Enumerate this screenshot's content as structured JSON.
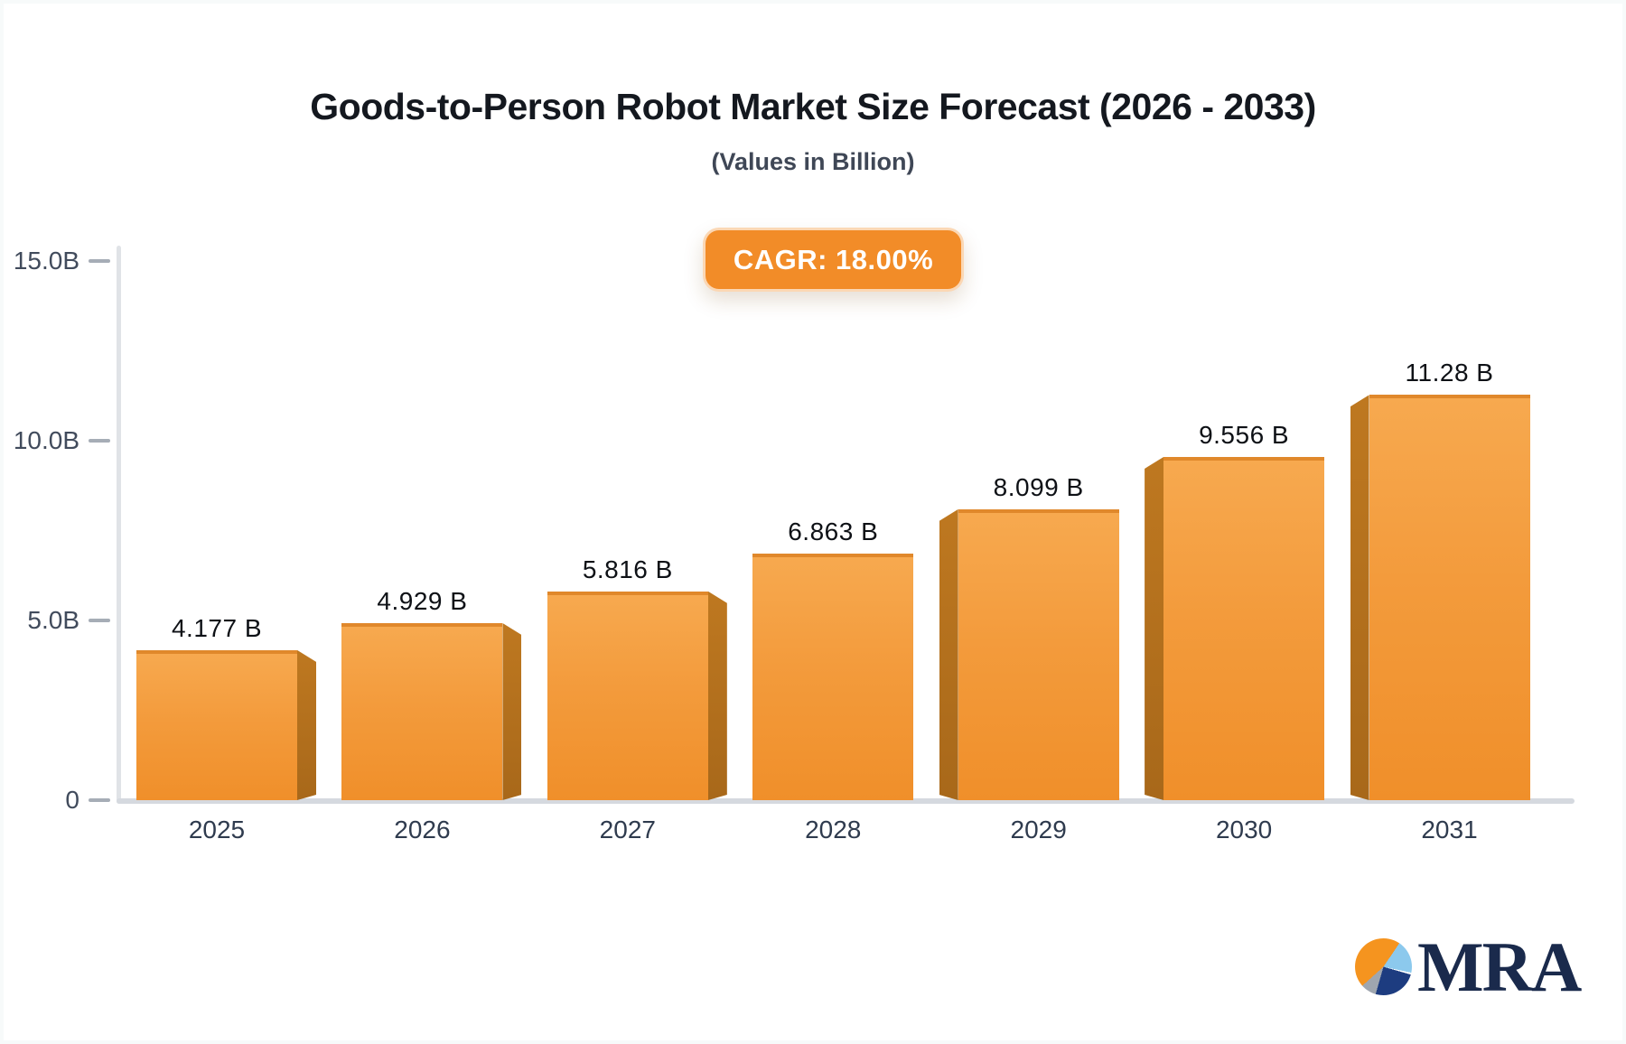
{
  "page": {
    "title": "Goods-to-Person Robot Market Size Forecast (2026 - 2033)",
    "subtitle": "(Values in Billion)",
    "cagr_badge_label": "CAGR: 18.00%"
  },
  "chart_data": {
    "type": "bar",
    "title": "Goods-to-Person Robot Market Size Forecast (2026 - 2033)",
    "subtitle": "(Values in Billion)",
    "cagr_percent": "18.00%",
    "categories": [
      "2025",
      "2026",
      "2027",
      "2028",
      "2029",
      "2030",
      "2031"
    ],
    "values": [
      4.177,
      4.929,
      5.816,
      6.863,
      8.099,
      9.556,
      11.28
    ],
    "value_labels": [
      "4.177 B",
      "4.929 B",
      "5.816 B",
      "6.863 B",
      "8.099 B",
      "9.556 B",
      "11.28 B"
    ],
    "unit": "Billion",
    "ylim": [
      0,
      15
    ],
    "yticks": [
      {
        "label": "15.0B",
        "value": 15
      },
      {
        "label": "10.0B",
        "value": 10
      },
      {
        "label": "5.0B",
        "value": 5
      },
      {
        "label": "0",
        "value": 0
      }
    ],
    "grid": false,
    "legend": null,
    "bar_style": "3d-perspective",
    "colors": {
      "bar_face_top": "#F7A94F",
      "bar_face_bottom": "#F08F2A",
      "bar_side": "#B4701D",
      "badge_background": "#F28C28",
      "axis_line": "#D5D9DF",
      "label_text": "#0E1116"
    }
  },
  "branding": {
    "logo_text": "MRA",
    "logo_navy": "#1A2A4C",
    "logo_orange": "#F5941F",
    "logo_lightblue": "#8CC9ED"
  }
}
